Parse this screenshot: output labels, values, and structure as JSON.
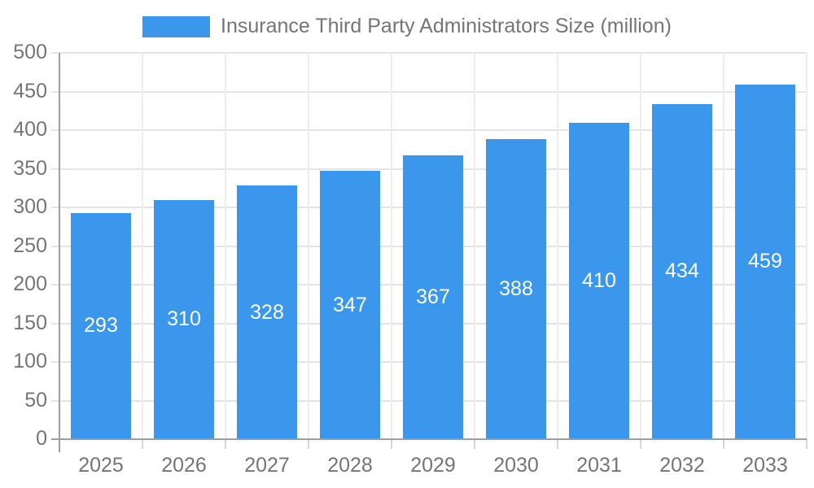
{
  "chart_data": {
    "type": "bar",
    "title": "Insurance Third Party Administrators Size (million)",
    "legend_position": "top",
    "categories": [
      "2025",
      "2026",
      "2027",
      "2028",
      "2029",
      "2030",
      "2031",
      "2032",
      "2033"
    ],
    "values": [
      293,
      310,
      328,
      347,
      367,
      388,
      410,
      434,
      459
    ],
    "value_labels": [
      "293",
      "310",
      "328",
      "347",
      "367",
      "388",
      "410",
      "434",
      "459"
    ],
    "xlabel": "",
    "ylabel": "",
    "ylim": [
      0,
      500
    ],
    "ytick_step": 50,
    "yticks": [
      0,
      50,
      100,
      150,
      200,
      250,
      300,
      350,
      400,
      450,
      500
    ],
    "grid": true,
    "colors": {
      "bar": "#3B97EB",
      "value_label": "#FFFFFF",
      "axis_text": "#757575",
      "gridline_h": "#E4E4E4",
      "gridline_v": "#EDEDED",
      "axis_line": "#9E9E9E",
      "tick_mark": "#D6D6D6",
      "background": "#FFFFFF"
    }
  }
}
